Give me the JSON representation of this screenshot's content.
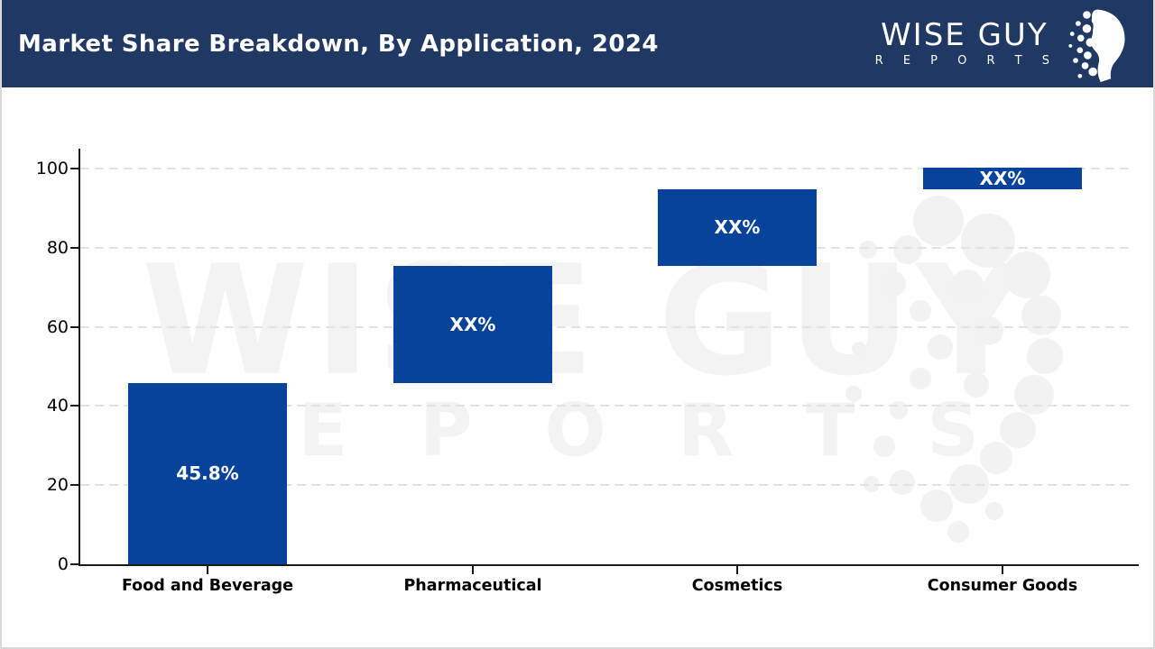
{
  "header": {
    "title": "Market Share Breakdown, By Application, 2024",
    "logo_line1": "WISE GUY",
    "logo_line2": "R E P O R T S",
    "bg_color": "#1f3864"
  },
  "watermark": {
    "line1": "WISE GUY",
    "line2": "R E P O R T S"
  },
  "chart_data": {
    "type": "bar",
    "subtype": "waterfall",
    "title": "Market Share Breakdown, By Application, 2024",
    "categories": [
      "Food and Beverage",
      "Pharmaceutical",
      "Cosmetics",
      "Consumer Goods"
    ],
    "segments": [
      {
        "category": "Food and Beverage",
        "start": 0,
        "end": 45.8,
        "label": "45.8%"
      },
      {
        "category": "Pharmaceutical",
        "start": 45.8,
        "end": 75.5,
        "label": "XX%"
      },
      {
        "category": "Cosmetics",
        "start": 75.5,
        "end": 94.7,
        "label": "XX%"
      },
      {
        "category": "Consumer Goods",
        "start": 94.7,
        "end": 100.3,
        "label": "XX%"
      }
    ],
    "yticks": [
      0,
      20,
      40,
      60,
      80,
      100
    ],
    "ylim": [
      0,
      105
    ],
    "xlabel": "",
    "ylabel": "",
    "legend": "none",
    "grid": "horizontal-dashed",
    "colors": {
      "bar": "#08439b",
      "grid": "#e3e3e3",
      "axis": "#1a1a1a",
      "bar_label": "#ffffff"
    }
  }
}
